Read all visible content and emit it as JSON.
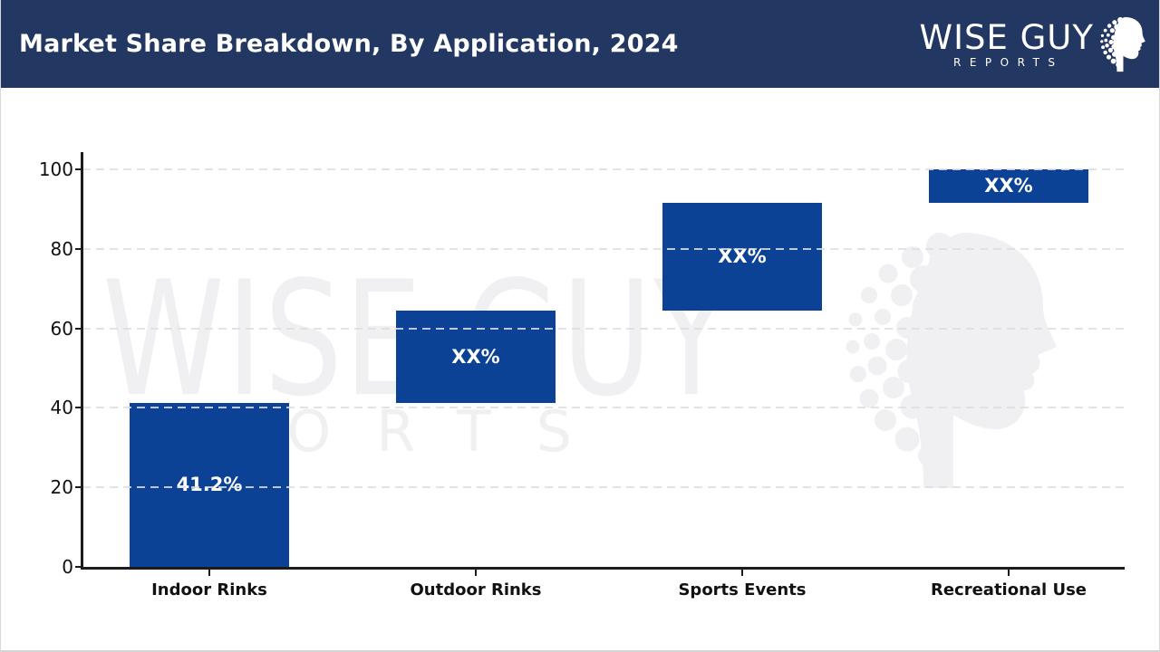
{
  "header": {
    "title": "Market Share Breakdown, By Application, 2024",
    "logo": {
      "primary": "WISE GUY",
      "secondary": "REPORTS"
    }
  },
  "watermark": {
    "primary": "WISE GUY",
    "secondary": "PORTS"
  },
  "chart_data": {
    "type": "bar",
    "subtype": "waterfall",
    "title": "Market Share Breakdown, By Application, 2024",
    "categories": [
      "Indoor Rinks",
      "Outdoor Rinks",
      "Sports Events",
      "Recreational Use"
    ],
    "segments": [
      {
        "category": "Indoor Rinks",
        "start": 0,
        "end": 41.2,
        "label": "41.2%"
      },
      {
        "category": "Outdoor Rinks",
        "start": 41.2,
        "end": 64.4,
        "label": "XX%"
      },
      {
        "category": "Sports Events",
        "start": 64.4,
        "end": 91.5,
        "label": "XX%"
      },
      {
        "category": "Recreational Use",
        "start": 91.5,
        "end": 100,
        "label": "XX%"
      }
    ],
    "xlabel": "",
    "ylabel": "",
    "ylim": [
      0,
      100
    ],
    "yticks": [
      0,
      20,
      40,
      60,
      80,
      100
    ],
    "grid": "horizontal-dashed",
    "legend": false
  },
  "colors": {
    "bar": "#0b4295",
    "bar_label": "#ffffff",
    "header_bg": "#233763",
    "title_text": "#ffffff",
    "axis": "#1c1c1c",
    "grid": "#dedede",
    "watermark": "#f0f0f3"
  }
}
